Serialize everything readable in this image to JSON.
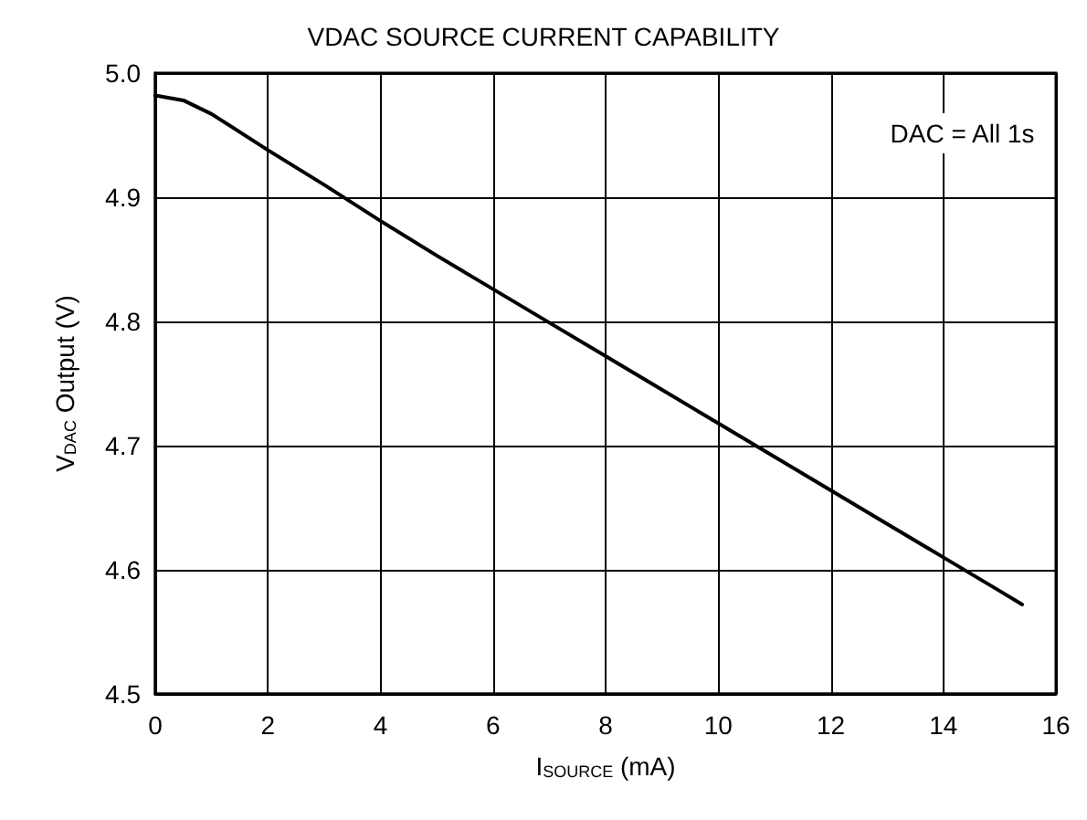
{
  "chart_data": {
    "type": "line",
    "title": "VDAC SOURCE CURRENT CAPABILITY",
    "xlabel": "I$_{SOURCE}$ (mA)",
    "ylabel": "V$_{DAC}$ Output (V)",
    "annotations": [
      "DAC = All 1s"
    ],
    "series": [
      {
        "color": "#000000",
        "x": [
          0,
          0.5,
          1,
          2,
          3,
          4,
          5,
          6,
          7,
          8,
          9,
          10,
          11,
          12,
          13,
          14,
          15,
          15.4
        ],
        "values": [
          4.982,
          4.978,
          4.967,
          4.938,
          4.91,
          4.881,
          4.853,
          4.826,
          4.799,
          4.772,
          4.745,
          4.718,
          4.691,
          4.664,
          4.637,
          4.61,
          4.583,
          4.572
        ]
      }
    ],
    "xlim": [
      0,
      16
    ],
    "xticks": [
      0,
      2,
      4,
      6,
      8,
      10,
      12,
      14,
      16
    ],
    "ylim": [
      4.5,
      5.0
    ],
    "yticks": [
      4.5,
      4.6,
      4.7,
      4.8,
      4.9,
      {
        "value": 5,
        "label": "5.0"
      }
    ],
    "grid": true,
    "marker": "none",
    "line_style": "solid"
  }
}
